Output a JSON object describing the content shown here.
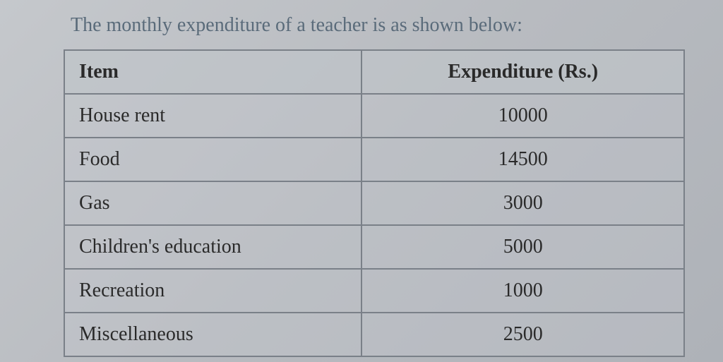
{
  "title": "The monthly expenditure of a teacher is as shown below:",
  "table": {
    "type": "table",
    "columns": [
      {
        "label": "Item",
        "align": "left",
        "width_pct": 48
      },
      {
        "label": "Expenditure (Rs.)",
        "align": "center",
        "width_pct": 52
      }
    ],
    "rows": [
      {
        "item": "House rent",
        "value": "10000"
      },
      {
        "item": "Food",
        "value": "14500"
      },
      {
        "item": "Gas",
        "value": "3000"
      },
      {
        "item": "Children's education",
        "value": "5000"
      },
      {
        "item": "Recreation",
        "value": "1000"
      },
      {
        "item": "Miscellaneous",
        "value": "2500"
      }
    ],
    "border_color": "#7a8088",
    "border_width": 2,
    "header_background": "#bec3c8",
    "body_background": "#c8cbd0",
    "text_color": "#2a2a2a",
    "title_color": "#5a6b7a",
    "font_family": "Georgia, Times New Roman, serif",
    "title_fontsize": 28,
    "cell_fontsize": 28,
    "header_fontweight": "bold"
  },
  "page_background": "#b8bbc0"
}
